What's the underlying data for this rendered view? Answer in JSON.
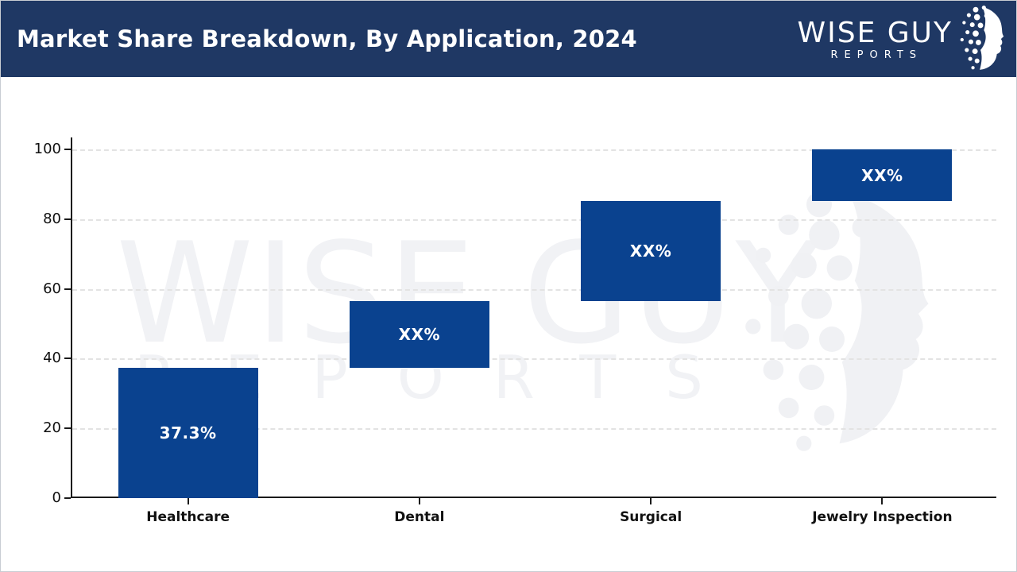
{
  "header": {
    "title": "Market Share Breakdown, By Application, 2024",
    "background": "#1f3864",
    "logo": {
      "line1": "WISE GUY",
      "line2": "REPORTS"
    }
  },
  "watermark": {
    "line1": "WISE GUY",
    "line2": "REPORTS"
  },
  "chart_data": {
    "type": "bar",
    "subtype": "floating-segment waterfall",
    "title": "Market Share Breakdown, By Application, 2024",
    "categories": [
      "Healthcare",
      "Dental",
      "Surgical",
      "Jewelry Inspection"
    ],
    "segments": [
      {
        "category": "Healthcare",
        "start": 0,
        "end": 37.3,
        "label": "37.3%"
      },
      {
        "category": "Dental",
        "start": 37.3,
        "end": 56.6,
        "label": "XX%"
      },
      {
        "category": "Surgical",
        "start": 56.6,
        "end": 85.1,
        "label": "XX%"
      },
      {
        "category": "Jewelry Inspection",
        "start": 85.1,
        "end": 100,
        "label": "XX%"
      }
    ],
    "ylim": [
      0,
      100
    ],
    "yticks": [
      0,
      20,
      40,
      60,
      80,
      100
    ],
    "grid": "horizontal dashed, light gray",
    "legend": "none",
    "bar_color": "#0a428f",
    "bar_label_color": "#ffffff",
    "axis_color": "#1a1a1a"
  }
}
